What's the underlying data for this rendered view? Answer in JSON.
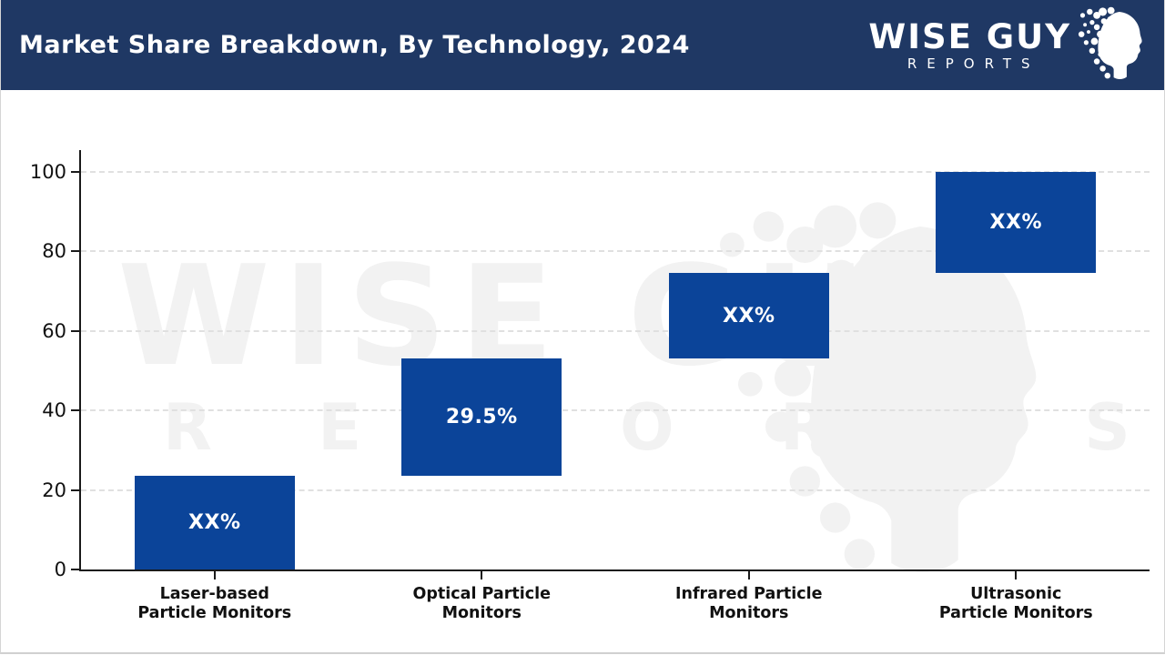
{
  "header": {
    "title": "Market Share Breakdown, By Technology, 2024",
    "logo": {
      "line1": "WISE GUY",
      "line2": "REPORTS"
    }
  },
  "watermark": {
    "line1": "WISE GUY",
    "line2": "R E P O R T S"
  },
  "colors": {
    "header_bg": "#1f3864",
    "bar": "#0b4499",
    "axis": "#1a1a1a",
    "gridline": "#e0e0e0",
    "watermark": "#f2f2f2",
    "bar_label": "#ffffff"
  },
  "chart_data": {
    "type": "bar",
    "subtype": "waterfall",
    "title": "Market Share Breakdown, By Technology, 2024",
    "xlabel": "",
    "ylabel": "",
    "categories": [
      [
        "Laser-based",
        "Particle Monitors"
      ],
      [
        "Optical Particle",
        "Monitors"
      ],
      [
        "Infrared Particle",
        "Monitors"
      ],
      [
        "Ultrasonic",
        "Particle Monitors"
      ]
    ],
    "series": [
      {
        "name": "Laser-based Particle Monitors",
        "start": 0,
        "end": 23.5,
        "label": "XX%"
      },
      {
        "name": "Optical Particle Monitors",
        "start": 23.5,
        "end": 53,
        "label": "29.5%"
      },
      {
        "name": "Infrared Particle Monitors",
        "start": 53,
        "end": 74.5,
        "label": "XX%"
      },
      {
        "name": "Ultrasonic Particle Monitors",
        "start": 74.5,
        "end": 100,
        "label": "XX%"
      }
    ],
    "yticks": [
      0,
      20,
      40,
      60,
      80,
      100
    ],
    "ylim": [
      0,
      105.5
    ],
    "grid": "horizontal-dashed",
    "legend": "none"
  }
}
